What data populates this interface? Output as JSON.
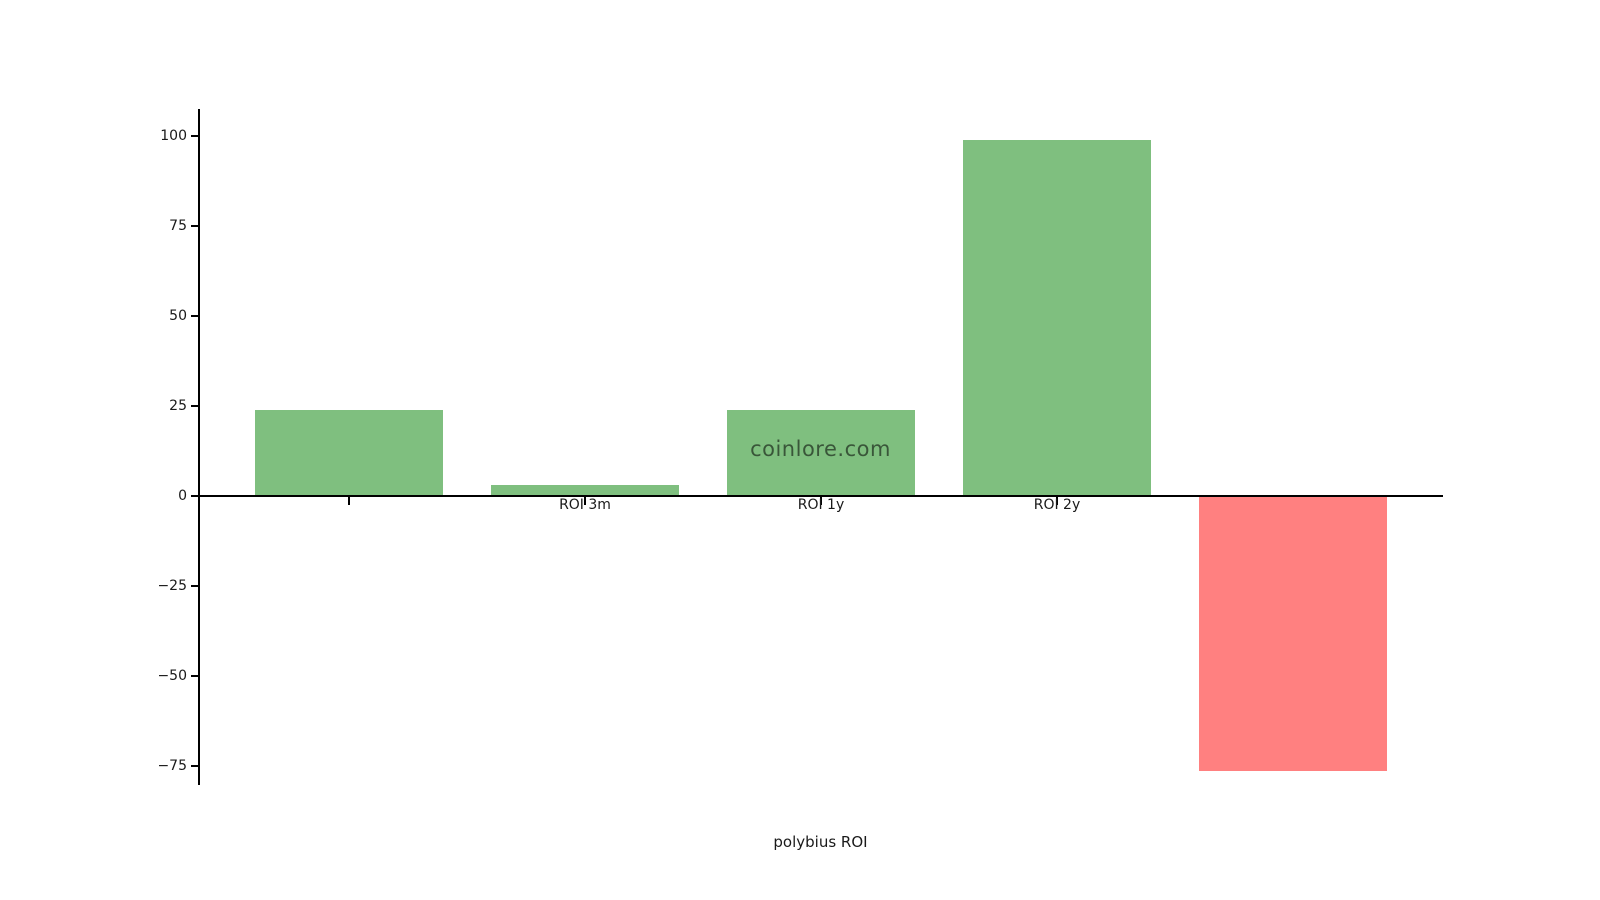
{
  "chart_data": {
    "type": "bar",
    "categories": [
      "",
      "ROI 3m",
      "ROI 1y",
      "ROI 2y",
      ""
    ],
    "values": [
      24,
      3,
      24,
      99,
      -76
    ],
    "x_tick_visible": [
      true,
      true,
      true,
      true,
      false
    ],
    "positive_color": "#7fbf7f",
    "negative_color": "#ff8080",
    "bar_colors": [
      "#7fbf7f",
      "#7fbf7f",
      "#7fbf7f",
      "#7fbf7f",
      "#ff8080"
    ],
    "title": "",
    "xlabel": "polybius ROI",
    "ylabel": "",
    "y_ticks": [
      100,
      75,
      50,
      25,
      0,
      -25,
      -50,
      -75
    ],
    "ylim": [
      -80,
      107
    ],
    "grid": false,
    "legend": null,
    "watermark": "coinlore.com",
    "axis_color": "#000000",
    "text_color": "#1a1a1a",
    "background_color": "#ffffff"
  }
}
